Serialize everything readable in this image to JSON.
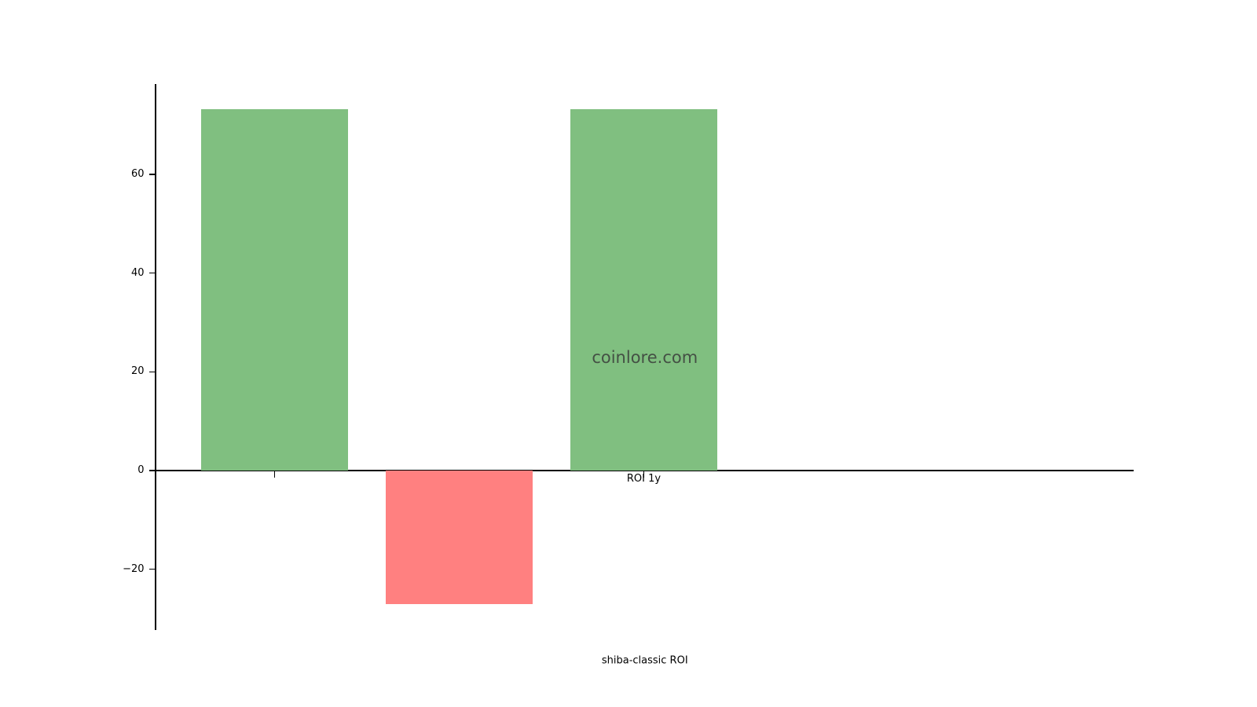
{
  "figure": {
    "background": "#ffffff",
    "watermark": "coinlore.com"
  },
  "chart_data": {
    "type": "bar",
    "title": "",
    "xlabel": "shiba-classic ROI",
    "ylabel": "",
    "categories": [
      "",
      "",
      "ROI 1y"
    ],
    "values": [
      73.2,
      -27.1,
      73.2
    ],
    "bar_colors": [
      "#80bf80",
      "#ff8080",
      "#80bf80"
    ],
    "positive_color": "#80bf80",
    "negative_color": "#ff8080",
    "yticks": [
      60,
      40,
      20,
      0,
      -20
    ],
    "ytick_labels": [
      "60",
      "40",
      "20",
      "0",
      "−20"
    ],
    "ylim": [
      -32.1,
      78.2
    ],
    "visible_xtick_indices": [
      0,
      2
    ],
    "grid": false,
    "legend": null,
    "watermark": "coinlore.com"
  }
}
